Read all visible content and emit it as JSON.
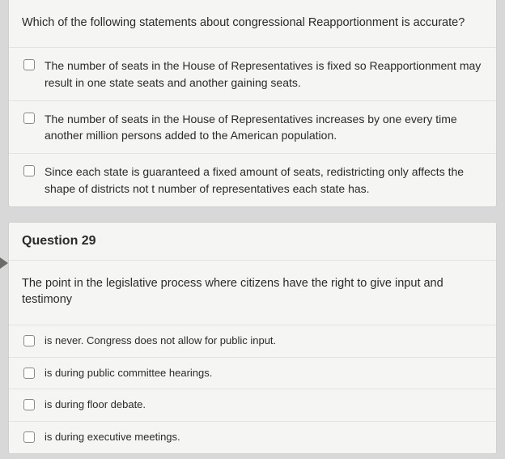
{
  "question1": {
    "prompt": "Which of the following statements about congressional Reapportionment is accurate?",
    "options": [
      "The number of seats in the House of Representatives is fixed so Reapportionment may result in one state seats and another gaining seats.",
      "The number of seats in the House of Representatives increases by one every time another million persons added to the American population.",
      "Since each state is guaranteed a fixed amount of seats, redistricting only affects the shape of districts not t number of representatives each state has."
    ]
  },
  "question2": {
    "title": "Question 29",
    "prompt": "The point in the legislative process where citizens have the right to give input and testimony",
    "options": [
      "is never. Congress does not allow for public input.",
      "is during public committee hearings.",
      "is during floor debate.",
      "is during executive meetings."
    ]
  },
  "colors": {
    "page_bg": "#d8d8d8",
    "card_bg": "#f5f5f3",
    "border": "#d0d0ce",
    "divider": "#e3e3e0",
    "text": "#2a2a2a",
    "checkbox_border": "#8a8a88"
  }
}
